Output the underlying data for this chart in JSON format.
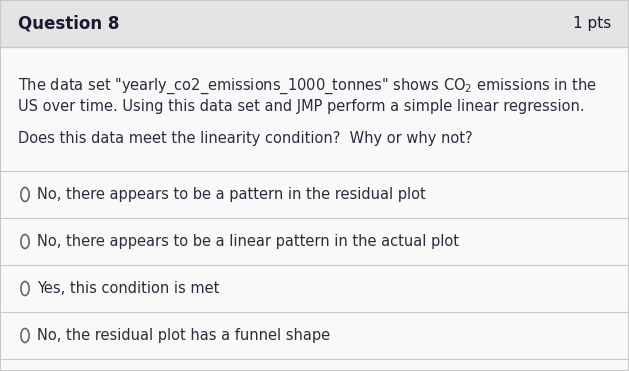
{
  "title": "Question 8",
  "pts": "1 pts",
  "header_bg": "#e4e4e4",
  "body_bg": "#f9f9f9",
  "border_color": "#c8c8c8",
  "title_color": "#1a1a2e",
  "text_color": "#2c2c3e",
  "body_line1a": "The data set \"yearly_co2_emissions_1000_tonnes\" shows CO",
  "body_line1b": "2",
  "body_line1c": " emissions in the",
  "body_line2": "US over time. Using this data set and JMP perform a simple linear regression.",
  "body_line3": "Does this data meet the linearity condition?  Why or why not?",
  "options": [
    "No, there appears to be a pattern in the residual plot",
    "No, there appears to be a linear pattern in the actual plot",
    "Yes, this condition is met",
    "No, the residual plot has a funnel shape"
  ],
  "divider_color": "#c8c8c8",
  "circle_color": "#666666",
  "font_size_title": 12,
  "font_size_pts": 11,
  "font_size_body": 10.5,
  "font_size_option": 10.5,
  "fig_width": 6.29,
  "fig_height": 3.71
}
